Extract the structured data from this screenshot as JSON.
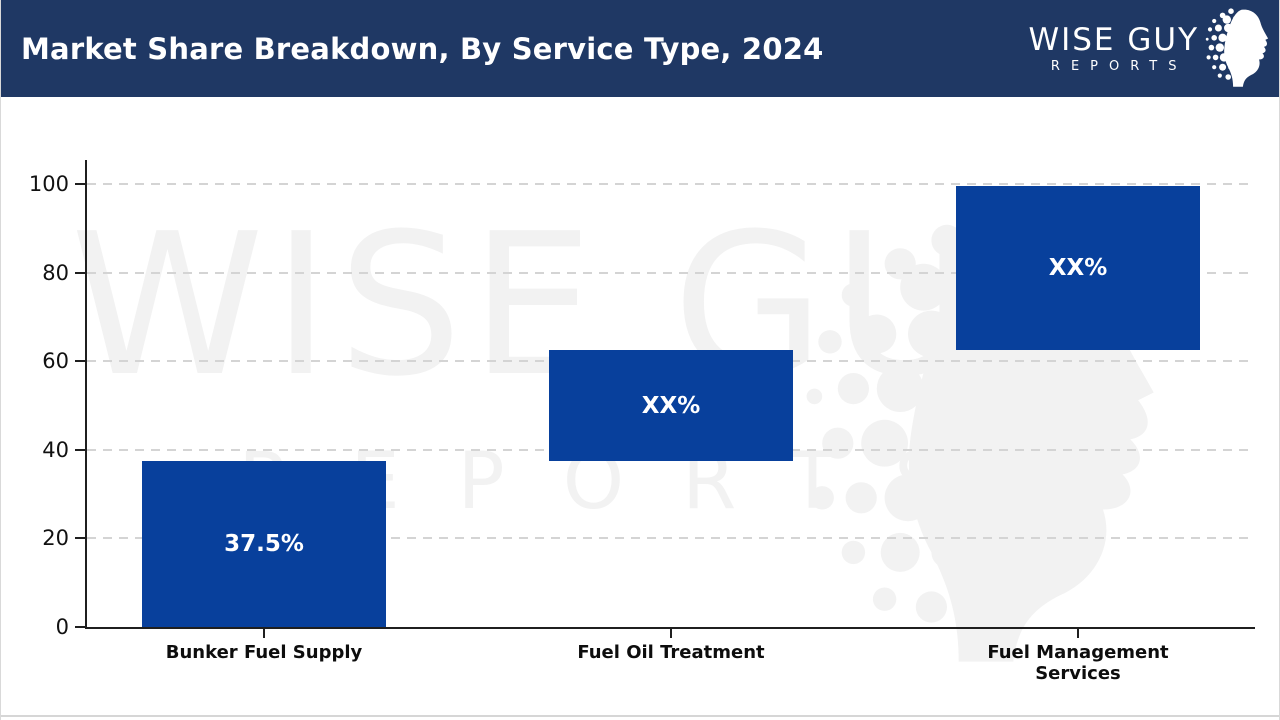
{
  "header": {
    "title": "Market Share Breakdown, By Service Type, 2024",
    "bg_color": "#1f3864",
    "logo": {
      "line1": "WISE GUY",
      "line2": "REPORTS"
    }
  },
  "watermark": {
    "line1": "WISE GUY",
    "line2": "REPORTS"
  },
  "chart_data": {
    "type": "bar",
    "variant": "floating-waterfall-segments",
    "title": "Market Share Breakdown, By Service Type, 2024",
    "unit": "%",
    "categories": [
      "Bunker Fuel Supply",
      "Fuel Oil Treatment",
      "Fuel Management Services"
    ],
    "segments": [
      {
        "category": "Bunker Fuel Supply",
        "from": 0,
        "to": 37.5,
        "label": "37.5%"
      },
      {
        "category": "Fuel Oil Treatment",
        "from": 37.5,
        "to": 62.5,
        "label": "XX%"
      },
      {
        "category": "Fuel Management Services",
        "from": 62.5,
        "to": 99.5,
        "label": "XX%"
      }
    ],
    "bar_color": "#08409c",
    "bar_label_color": "#ffffff",
    "ylim": [
      0,
      105
    ],
    "yticks": [
      0,
      20,
      40,
      60,
      80,
      100
    ],
    "grid": {
      "axis": "y",
      "style": "dashed",
      "color": "#d4d4d4"
    },
    "legend": "none",
    "xlabel": "",
    "ylabel": ""
  }
}
